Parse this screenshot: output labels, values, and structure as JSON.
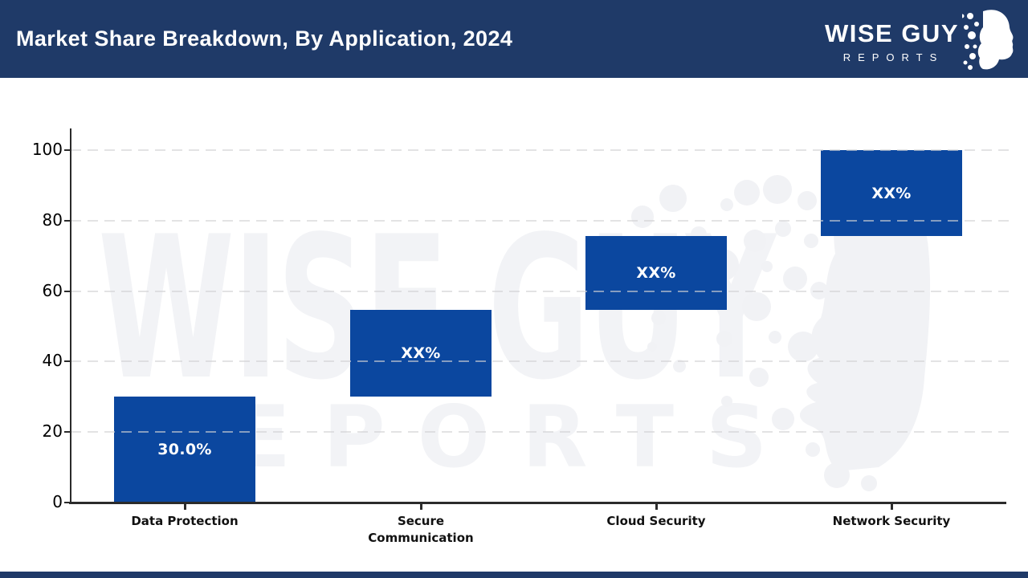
{
  "header": {
    "title": "Market Share Breakdown, By Application, 2024",
    "logo": {
      "primary": "WISE GUY",
      "secondary": "REPORTS"
    }
  },
  "watermark": {
    "primary": "WISE GUY",
    "secondary": "REPORTS"
  },
  "chart_data": {
    "type": "bar",
    "variant": "waterfall",
    "title": "Market Share Breakdown, By Application, 2024",
    "categories": [
      "Data Protection",
      "Secure Communication",
      "Cloud Security",
      "Network Security"
    ],
    "segments": [
      {
        "category": "Data Protection",
        "start": 0,
        "end": 30,
        "label": "30.0%"
      },
      {
        "category": "Secure Communication",
        "start": 30,
        "end": 54.7,
        "label": "XX%"
      },
      {
        "category": "Cloud Security",
        "start": 54.7,
        "end": 75.6,
        "label": "XX%"
      },
      {
        "category": "Network Security",
        "start": 75.6,
        "end": 100,
        "label": "XX%"
      }
    ],
    "ylim": [
      0,
      100
    ],
    "yticks": [
      0,
      20,
      40,
      60,
      80,
      100
    ],
    "grid": {
      "horizontal": true,
      "style": "dashed"
    },
    "legend": "none",
    "bar_color": "#0b479f"
  },
  "colors": {
    "header_bg": "#1f3a68",
    "footer_bg": "#1f3a68",
    "bar": "#0b479f",
    "axis": "#2b2b2b",
    "grid": "#d8d8da",
    "tick_text": "#000000",
    "category_text": "#111111",
    "bar_label_text": "#ffffff",
    "watermark": "#f2f3f6"
  }
}
